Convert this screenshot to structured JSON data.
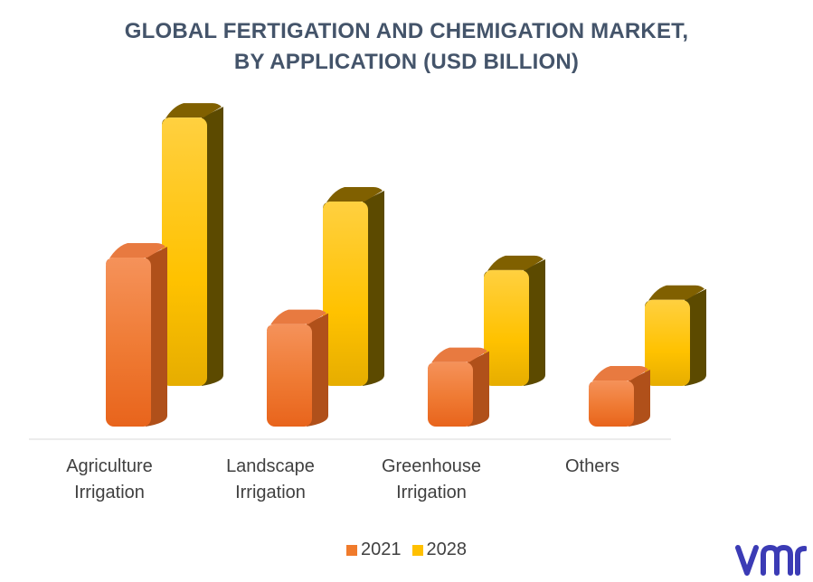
{
  "chart_data": {
    "type": "bar",
    "title_line1": "GLOBAL FERTIGATION AND CHEMIGATION MARKET,",
    "title_line2": "BY APPLICATION (USD BILLION)",
    "categories": [
      [
        "Agriculture",
        "Irrigation"
      ],
      [
        "Landscape",
        "Irrigation"
      ],
      [
        "Greenhouse",
        "Irrigation"
      ],
      [
        "Others"
      ]
    ],
    "series": [
      {
        "name": "2021",
        "values": [
          1.65,
          1.0,
          0.63,
          0.45
        ],
        "color": "#f07b2c"
      },
      {
        "name": "2028",
        "values": [
          2.62,
          1.8,
          1.13,
          0.84
        ],
        "color": "#ffc000"
      }
    ],
    "xlabel": "",
    "ylabel": "",
    "ylim": [
      0,
      3
    ],
    "grid": false,
    "legend_position": "bottom",
    "style": "3d-cylinder"
  },
  "branding": {
    "logo_icon": "vmr-logo-icon",
    "logo_color": "#3b3bb5"
  }
}
